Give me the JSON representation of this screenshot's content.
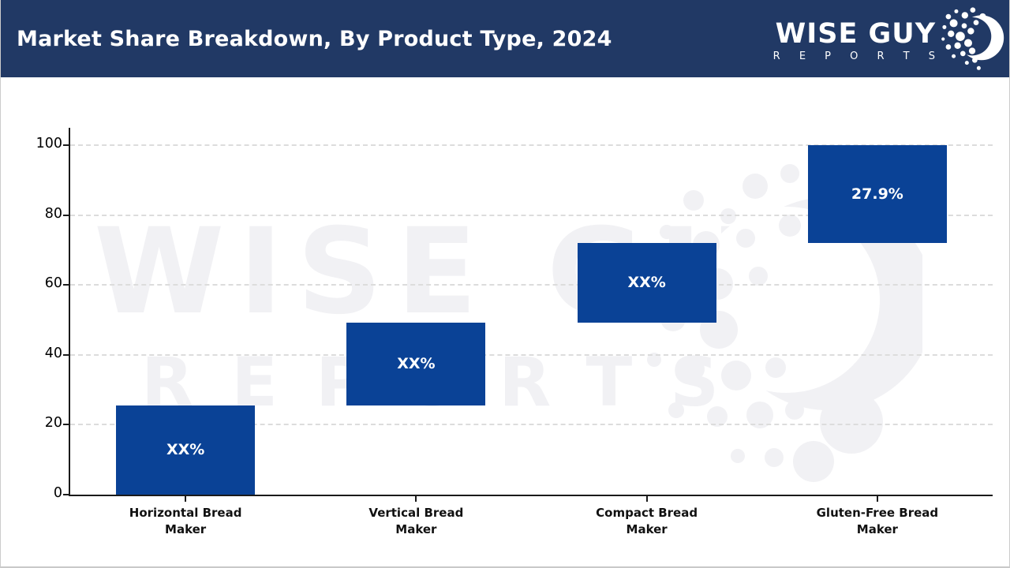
{
  "header": {
    "title": "Market Share Breakdown, By Product Type, 2024",
    "logo": {
      "primary": "WISE GUY",
      "secondary": "R E P O R T S"
    }
  },
  "watermark": {
    "primary": "WISE GUY",
    "secondary": "REPORTS"
  },
  "colors": {
    "header_bg": "#213965",
    "bar": "#0a4296",
    "bar_label": "#ffffff",
    "grid": "#dcdcdc",
    "axis": "#1a1a1a",
    "watermark": "#f1f1f4",
    "page_border": "#cccccc"
  },
  "chart_data": {
    "type": "bar",
    "subtype": "waterfall",
    "title": "Market Share Breakdown, By Product Type, 2024",
    "categories": [
      "Horizontal Bread\nMaker",
      "Vertical Bread\nMaker",
      "Compact Bread\nMaker",
      "Gluten-Free Bread\nMaker"
    ],
    "segments": [
      {
        "category": "Horizontal Bread Maker",
        "start": 0,
        "end": 25.6,
        "label": "XX%"
      },
      {
        "category": "Vertical Bread Maker",
        "start": 25.6,
        "end": 49.2,
        "label": "XX%"
      },
      {
        "category": "Compact Bread Maker",
        "start": 49.2,
        "end": 72.1,
        "label": "XX%"
      },
      {
        "category": "Gluten-Free Bread Maker",
        "start": 72.1,
        "end": 100,
        "label": "27.9%"
      }
    ],
    "yticks": [
      0,
      20,
      40,
      60,
      80,
      100
    ],
    "ylim": [
      0,
      105
    ],
    "xlabel": "",
    "ylabel": "",
    "grid": "horizontal-dashed",
    "legend": "none"
  }
}
